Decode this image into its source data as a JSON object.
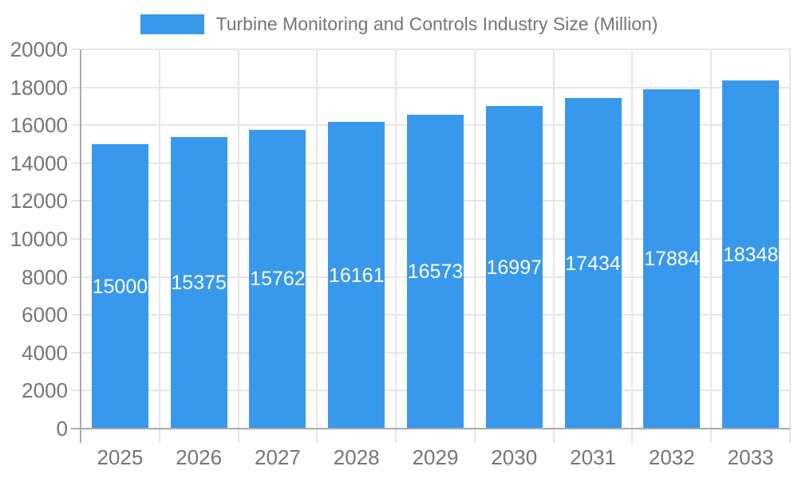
{
  "legend": {
    "label": "Turbine Monitoring and Controls Industry Size (Million)"
  },
  "chart_data": {
    "type": "bar",
    "title": "Turbine Monitoring and Controls Industry Size (Million)",
    "series_name": "Turbine Monitoring and Controls Industry Size (Million)",
    "categories": [
      "2025",
      "2026",
      "2027",
      "2028",
      "2029",
      "2030",
      "2031",
      "2032",
      "2033"
    ],
    "values": [
      15000,
      15375,
      15762,
      16161,
      16573,
      16997,
      17434,
      17884,
      18348
    ],
    "bar_labels": [
      "15000",
      "15375",
      "15762",
      "16161",
      "16573",
      "16997",
      "17434",
      "17884",
      "18348"
    ],
    "xlabel": "",
    "ylabel": "",
    "ylim": [
      0,
      20000
    ],
    "ytick_step": 2000,
    "yticks": [
      "0",
      "2000",
      "4000",
      "6000",
      "8000",
      "10000",
      "12000",
      "14000",
      "16000",
      "18000",
      "20000"
    ],
    "grid": true,
    "legend_position": "top",
    "colors": {
      "bar": "#3898EC",
      "gridline": "#E6E6E6",
      "axis_line": "#AAAAAA",
      "tick_text": "#757575",
      "bar_label_text": "#FFFFFF",
      "background": "#FFFFFF"
    }
  }
}
